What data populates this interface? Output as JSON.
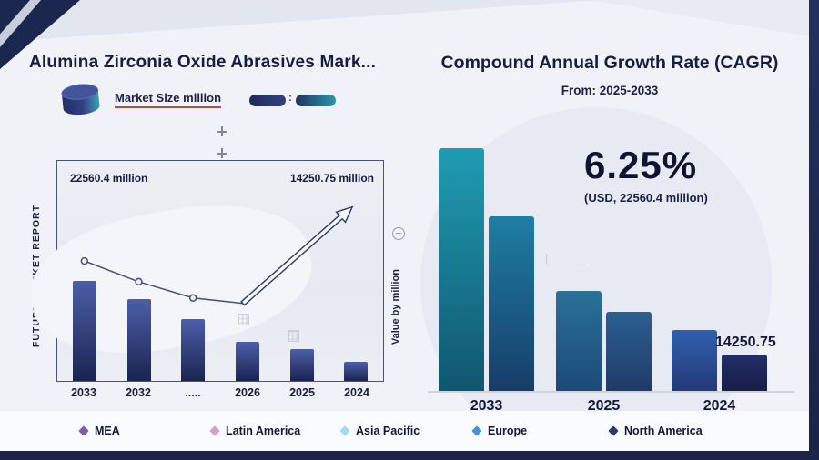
{
  "theme": {
    "background": "#f1f2f7",
    "navy": "#1c2750",
    "teal": "#2e96ab",
    "ink": "#171d40",
    "red_underline": "#c24747"
  },
  "left_panel": {
    "title": "Alumina Zirconia Oxide Abrasives Mark...",
    "market_size_label": "Market Size million",
    "pill_separator": ":",
    "side_watermark": "FUTURE MARKET REPORT",
    "value_axis_label": "Value by million",
    "start_value": "22560.4 million",
    "end_value": "14250.75 million"
  },
  "right_panel": {
    "title": "Compound Annual Growth Rate (CAGR)",
    "subtitle": "From: 2025-2033",
    "cagr_value": "6.25%",
    "cagr_basis": "(USD, 22560.4 million)",
    "end_value": "14250.75"
  },
  "legend": {
    "items": [
      {
        "label": "MEA",
        "color": "#7a5fae"
      },
      {
        "label": "Latin America",
        "color": "#dd9cc8"
      },
      {
        "label": "Asia Pacific",
        "color": "#9edcf4"
      },
      {
        "label": "Europe",
        "color": "#4593d8"
      },
      {
        "label": "North America",
        "color": "#2b3871"
      }
    ]
  },
  "chart_data": [
    {
      "type": "bar",
      "title": "Market Size million",
      "ylabel": "Value by million",
      "categories": [
        "2033",
        "2032",
        ".....",
        "2026",
        "2025",
        "2024"
      ],
      "values_relative": [
        110,
        90,
        68,
        43,
        35,
        21
      ],
      "labeled_values": {
        "2033": "22560.4 million",
        "2024": "14250.75 million"
      },
      "bar_color_top": "#4d5ea9",
      "bar_color_bottom": "#1a2450",
      "grid": false,
      "legend_position": "top-left"
    },
    {
      "type": "bar",
      "title": "Compound Annual Growth Rate (CAGR)",
      "subtitle": "From: 2025-2033",
      "cagr_percent": 6.25,
      "cagr_base_usd_million": 22560.4,
      "end_value_usd_million": 14250.75,
      "categories": [
        "2033",
        "2025",
        "2024"
      ],
      "series": [
        {
          "name": "series-1",
          "values_relative": [
            267,
            110,
            67
          ]
        },
        {
          "name": "series-2",
          "values_relative": [
            192,
            87,
            40
          ]
        }
      ],
      "bar_colors": [
        [
          [
            "#1f9cb1",
            "#10566e"
          ],
          [
            "#1f7ea4",
            "#173d68"
          ]
        ],
        [
          [
            "#2a7097",
            "#1d4a78"
          ],
          [
            "#2b6090",
            "#203a69"
          ]
        ],
        [
          [
            "#2f5fae",
            "#233a76"
          ],
          [
            "#232e68",
            "#161e48"
          ]
        ]
      ],
      "grid": false
    }
  ]
}
